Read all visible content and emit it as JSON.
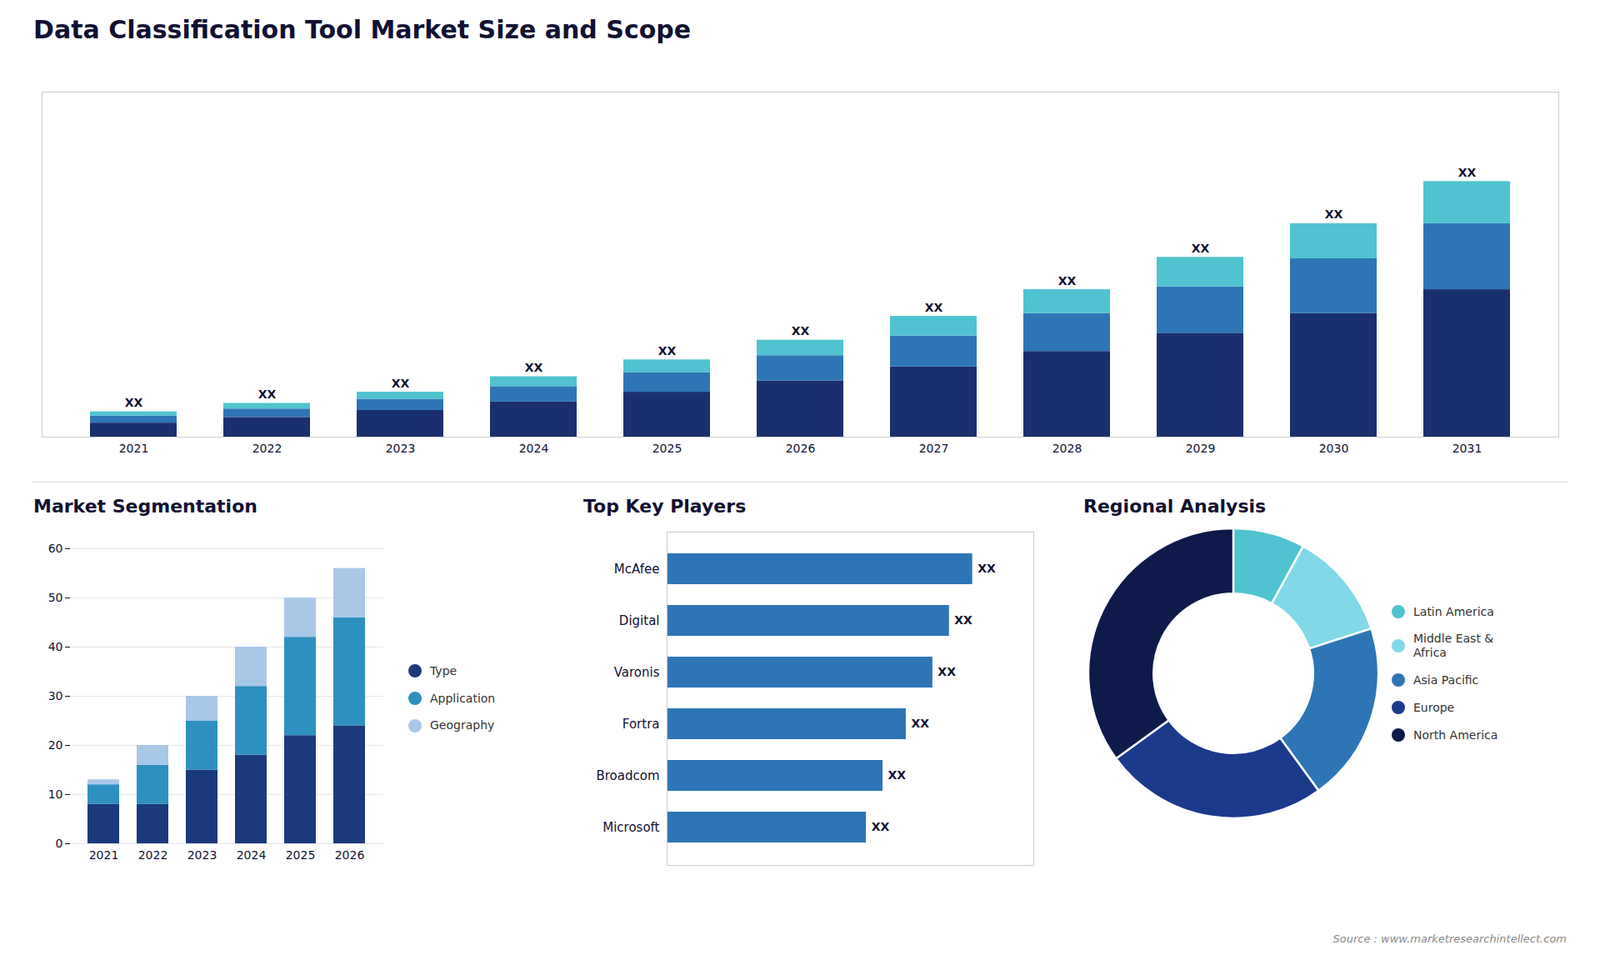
{
  "chart_data": [
    {
      "type": "bar",
      "title": "Data Classification Tool Market Size and Scope",
      "stacked": true,
      "categories": [
        "2021",
        "2022",
        "2023",
        "2024",
        "2025",
        "2026",
        "2027",
        "2028",
        "2029",
        "2030",
        "2031"
      ],
      "series": [
        {
          "color": "#1a2f6e",
          "values": [
            1.0,
            1.4,
            1.9,
            2.5,
            3.2,
            4.0,
            5.0,
            6.1,
            7.4,
            8.8,
            10.5
          ]
        },
        {
          "color": "#2e75b6",
          "values": [
            0.5,
            0.6,
            0.8,
            1.1,
            1.4,
            1.8,
            2.2,
            2.7,
            3.3,
            3.9,
            4.7
          ]
        },
        {
          "color": "#4fc3d0",
          "values": [
            0.3,
            0.4,
            0.5,
            0.7,
            0.9,
            1.1,
            1.4,
            1.7,
            2.1,
            2.5,
            3.0
          ]
        }
      ],
      "value_labels": [
        "XX",
        "XX",
        "XX",
        "XX",
        "XX",
        "XX",
        "XX",
        "XX",
        "XX",
        "XX",
        "XX"
      ],
      "ylim": [
        0,
        24.57
      ],
      "tick_labels": "x",
      "grid": false
    },
    {
      "type": "bar",
      "title": "Market Segmentation",
      "stacked": true,
      "categories": [
        "2021",
        "2022",
        "2023",
        "2024",
        "2025",
        "2026"
      ],
      "series": [
        {
          "name": "Type",
          "color": "#1a3a7c",
          "values": [
            8,
            8,
            15,
            18,
            22,
            24
          ]
        },
        {
          "name": "Application",
          "color": "#2e90c0",
          "values": [
            4,
            8,
            10,
            14,
            20,
            22
          ]
        },
        {
          "name": "Geography",
          "color": "#a8c8e8",
          "values": [
            1,
            4,
            5,
            8,
            8,
            10
          ]
        }
      ],
      "ylim": [
        0,
        60
      ],
      "yticks": [
        0,
        10,
        20,
        30,
        40,
        50,
        60
      ],
      "grid": true,
      "legend": "right"
    },
    {
      "type": "bar",
      "title": "Top Key Players",
      "orientation": "horizontal",
      "categories": [
        "McAfee",
        "Digital",
        "Varonis",
        "Fortra",
        "Broadcom",
        "Microsoft"
      ],
      "values": [
        9.2,
        8.5,
        8.0,
        7.2,
        6.5,
        6.0
      ],
      "value_labels": [
        "XX",
        "XX",
        "XX",
        "XX",
        "XX",
        "XX"
      ],
      "color": "#2e75b6",
      "xlim": [
        0,
        11.04
      ],
      "tick_labels": "y",
      "grid": false
    },
    {
      "type": "donut",
      "title": "Regional Analysis",
      "categories": [
        "Latin America",
        "Middle East &\nAfrica",
        "Asia Pacific",
        "Europe",
        "North America"
      ],
      "values": [
        8,
        12,
        20,
        25,
        35
      ],
      "colors": [
        "#4fc3d0",
        "#80d8e8",
        "#2e75b6",
        "#1a3a8c",
        "#0d1a4a"
      ],
      "legend": "right",
      "annotations": [
        "Source : www.marketresearchintellect.com"
      ]
    }
  ]
}
